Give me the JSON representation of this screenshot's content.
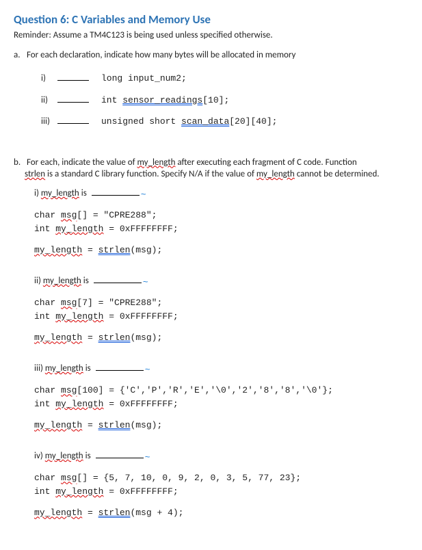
{
  "title": {
    "text": "Question 6: C Variables and Memory Use",
    "color": "#2e74b5"
  },
  "reminder": "Reminder: Assume a TM4C123 is being used unless specified otherwise.",
  "partA": {
    "letter": "a.",
    "prompt": "For each declaration, indicate how many bytes will be allocated in memory",
    "items": [
      {
        "roman": "i)",
        "pre": "long ",
        "wavy": "",
        "post": "input_num2;"
      },
      {
        "roman": "ii)",
        "pre": "int ",
        "wavy": "sensor_readings",
        "post": "[10];"
      },
      {
        "roman": "iii)",
        "pre": "unsigned short ",
        "wavy": "scan_data",
        "post": "[20][40];"
      }
    ]
  },
  "partB": {
    "letter": "b.",
    "prompt1": "For each, indicate the value of ",
    "prompt_wavy1": "my_length",
    "prompt2": " after executing each fragment of C code.  Function ",
    "prompt_wavy2": "strlen",
    "prompt3": " is a standard C library function. Specify N/A if the value of ",
    "prompt_wavy3": "my_length",
    "prompt4": " cannot be determined.",
    "items": [
      {
        "roman": "i)",
        "decl1_pre": "char ",
        "decl1_wavy": "msg",
        "decl1_post": "[] = \"CPRE288\";",
        "decl2_pre": "int ",
        "decl2_wavy": "my_length",
        "decl2_post": " = 0xFFFFFFFF;",
        "assign_wavy1": "my_length",
        "assign_mid": " = ",
        "assign_wavy2": "strlen",
        "assign_post": "(msg);"
      },
      {
        "roman": "ii)",
        "decl1_pre": "char ",
        "decl1_wavy": "msg",
        "decl1_post": "[7] = \"CPRE288\";",
        "decl2_pre": "int ",
        "decl2_wavy": "my_length",
        "decl2_post": " = 0xFFFFFFFF;",
        "assign_wavy1": "my_length",
        "assign_mid": " = ",
        "assign_wavy2": "strlen",
        "assign_post": "(msg);"
      },
      {
        "roman": "iii)",
        "decl1_pre": "char ",
        "decl1_wavy": "msg",
        "decl1_post": "[100] = {'C','P','R','E','\\0','2','8','8','\\0'};",
        "decl2_pre": "int ",
        "decl2_wavy": "my_length",
        "decl2_post": " = 0xFFFFFFFF;",
        "assign_wavy1": "my_length",
        "assign_mid": " = ",
        "assign_wavy2": "strlen",
        "assign_post": "(msg);"
      },
      {
        "roman": "iv)",
        "decl1_pre": "char ",
        "decl1_wavy": "msg",
        "decl1_post": "[] = {5, 7, 10, 0, 9, 2, 0, 3, 5, 77, 23};",
        "decl2_pre": "int ",
        "decl2_wavy": "my_length",
        "decl2_post": " = 0xFFFFFFFF;",
        "assign_wavy1": "my_length",
        "assign_mid": " = ",
        "assign_wavy2": "strlen",
        "assign_post": "(msg + 4);"
      }
    ]
  }
}
